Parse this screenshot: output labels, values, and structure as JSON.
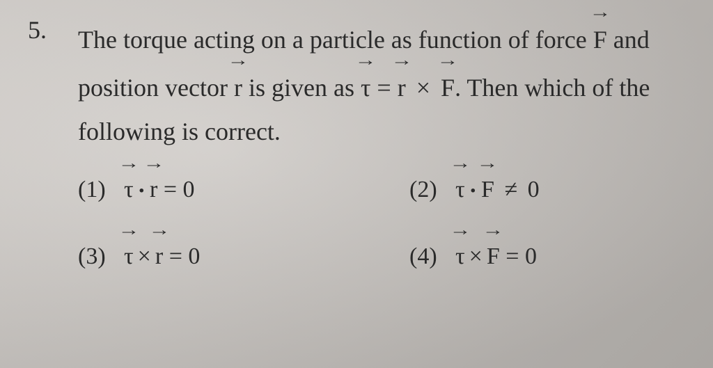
{
  "question": {
    "number": "5.",
    "stem_parts": {
      "t1": "The torque acting on a particle as function of force ",
      "vF1": "F",
      "t2": " and position vector ",
      "vr1": "r",
      "t3": " is given as ",
      "vtau1": "τ",
      "eq": " = ",
      "vr2": "r",
      "cross": " × ",
      "vF2": "F",
      "t4": ". Then which of the following is correct."
    },
    "options": [
      {
        "label": "(1)",
        "vec1": "τ",
        "op": "·",
        "vec2": "r",
        "rel": "=",
        "rhs": "0"
      },
      {
        "label": "(2)",
        "vec1": "τ",
        "op": "·",
        "vec2": "F",
        "rel": "≠",
        "rhs": "0"
      },
      {
        "label": "(3)",
        "vec1": "τ",
        "op": "×",
        "vec2": "r",
        "rel": "=",
        "rhs": "0"
      },
      {
        "label": "(4)",
        "vec1": "τ",
        "op": "×",
        "vec2": "F",
        "rel": "=",
        "rhs": "0"
      }
    ]
  },
  "style": {
    "text_color": "#2a2a2a",
    "bg_gradient_start": "#d8d4d0",
    "bg_gradient_end": "#b8b4b0",
    "body_fontsize": 36,
    "option_fontsize": 34,
    "font_family": "Times New Roman"
  }
}
